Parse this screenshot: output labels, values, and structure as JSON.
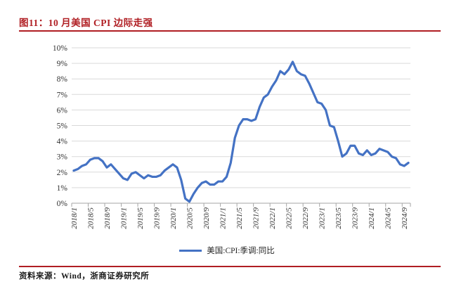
{
  "figure": {
    "title": "图11：10 月美国 CPI 边际走强",
    "source": "资料来源：Wind，浙商证券研究所",
    "accent_color": "#B01E23"
  },
  "chart_data": {
    "type": "line",
    "title": "图11：10 月美国 CPI 边际走强",
    "x_start": "2018/1",
    "x_end": "2024/10",
    "frequency": "monthly",
    "x_tick_labels": [
      "2018/1",
      "2018/5",
      "2018/9",
      "2019/1",
      "2019/5",
      "2019/9",
      "2020/1",
      "2020/5",
      "2020/9",
      "2021/1",
      "2021/5",
      "2021/9",
      "2022/1",
      "2022/5",
      "2022/9",
      "2023/1",
      "2023/5",
      "2023/9",
      "2024/1",
      "2024/5",
      "2024/9"
    ],
    "y_tick_labels": [
      "0%",
      "1%",
      "2%",
      "3%",
      "4%",
      "5%",
      "6%",
      "7%",
      "8%",
      "9%",
      "10%"
    ],
    "ylim": [
      0,
      10
    ],
    "grid": "horizontal",
    "gridline_color": "#D9D9D9",
    "axis_color": "#A6A6A6",
    "label_color": "#333333",
    "legend_position": "bottom",
    "series": [
      {
        "name": "美国:CPI:季调:同比",
        "color": "#4472C4",
        "values": [
          2.1,
          2.2,
          2.4,
          2.5,
          2.8,
          2.9,
          2.9,
          2.7,
          2.3,
          2.5,
          2.2,
          1.9,
          1.6,
          1.5,
          1.9,
          2.0,
          1.8,
          1.6,
          1.8,
          1.7,
          1.7,
          1.8,
          2.1,
          2.3,
          2.5,
          2.3,
          1.5,
          0.3,
          0.1,
          0.6,
          1.0,
          1.3,
          1.4,
          1.2,
          1.2,
          1.4,
          1.4,
          1.7,
          2.6,
          4.2,
          5.0,
          5.4,
          5.4,
          5.3,
          5.4,
          6.2,
          6.8,
          7.0,
          7.5,
          7.9,
          8.5,
          8.3,
          8.6,
          9.1,
          8.5,
          8.3,
          8.2,
          7.7,
          7.1,
          6.5,
          6.4,
          6.0,
          5.0,
          4.9,
          4.0,
          3.0,
          3.2,
          3.7,
          3.7,
          3.2,
          3.1,
          3.4,
          3.1,
          3.2,
          3.5,
          3.4,
          3.3,
          3.0,
          2.9,
          2.5,
          2.4,
          2.6
        ]
      }
    ]
  }
}
